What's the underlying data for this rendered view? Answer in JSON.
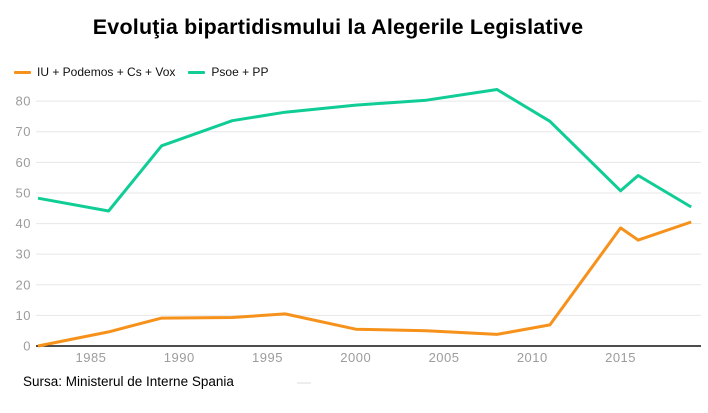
{
  "title": "Evoluţia bipartidismului la Alegerile Legislative",
  "source": "Sursa: Ministerul de Interne Spania",
  "legend": [
    {
      "label": "IU + Podemos + Cs + Vox",
      "color": "#f6921b"
    },
    {
      "label": "Psoe + PP",
      "color": "#10cd96"
    }
  ],
  "colors": {
    "background": "#ffffff",
    "gridline": "#e7e7e7",
    "axis": "#111111",
    "tick_text": "#9c9c9c",
    "title_text": "#000000"
  },
  "chart_data": {
    "type": "line",
    "title": "Evoluţia bipartidismului la Alegerile Legislative",
    "xlabel": "",
    "ylabel": "",
    "x": [
      1982,
      1986,
      1989,
      1993,
      1996,
      2000,
      2004,
      2008,
      2011,
      2015,
      2016,
      2019
    ],
    "series": [
      {
        "name": "IU + Podemos + Cs + Vox",
        "color": "#f6921b",
        "values": [
          0,
          4.6,
          9.1,
          9.3,
          10.5,
          5.5,
          5.0,
          3.8,
          6.9,
          38.6,
          34.6,
          40.5
        ]
      },
      {
        "name": "Psoe + PP",
        "color": "#10cd96",
        "values": [
          48.3,
          44.1,
          65.4,
          73.6,
          76.4,
          78.7,
          80.3,
          83.8,
          73.4,
          50.7,
          55.7,
          45.4
        ]
      }
    ],
    "x_ticks": [
      1985,
      1990,
      1995,
      2000,
      2005,
      2010,
      2015
    ],
    "y_ticks": [
      0,
      10,
      20,
      30,
      40,
      50,
      60,
      70,
      80
    ],
    "xlim": [
      1982,
      2019.5
    ],
    "ylim": [
      0,
      85.6
    ],
    "grid": "horizontal",
    "legend_position": "top-left",
    "source": "Sursa: Ministerul de Interne Spania"
  }
}
